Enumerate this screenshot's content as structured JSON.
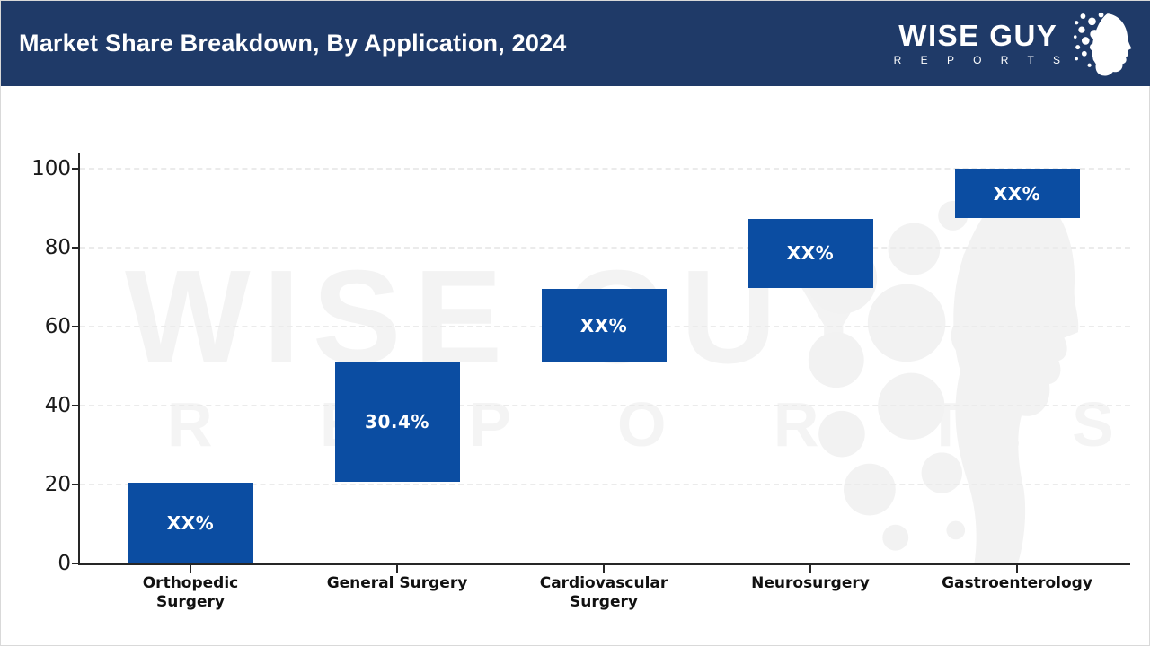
{
  "header": {
    "title": "Market Share Breakdown, By Application, 2024",
    "logo": {
      "line1": "WISE GUY",
      "line2": "R E P O R T S"
    }
  },
  "watermark": {
    "line1": "WISE GUY",
    "line2": "R E P O R T S"
  },
  "colors": {
    "header_bg": "#1f3a68",
    "bar": "#0b4da2",
    "axis": "#262626",
    "grid": "#ebebeb",
    "bar_label": "#ffffff"
  },
  "chart_data": {
    "type": "bar",
    "subtype": "waterfall",
    "title": "Market Share Breakdown, By Application, 2024",
    "xlabel": "",
    "ylabel": "",
    "categories": [
      "Orthopedic Surgery",
      "General Surgery",
      "Cardiovascular Surgery",
      "Neurosurgery",
      "Gastroenterology"
    ],
    "segments": [
      {
        "category": "Orthopedic Surgery",
        "start": 0,
        "end": 20.5,
        "label": "XX%"
      },
      {
        "category": "General Surgery",
        "start": 20.6,
        "end": 51.0,
        "label": "30.4%"
      },
      {
        "category": "Cardiovascular Surgery",
        "start": 51.0,
        "end": 69.5,
        "label": "XX%"
      },
      {
        "category": "Neurosurgery",
        "start": 69.8,
        "end": 87.3,
        "label": "XX%"
      },
      {
        "category": "Gastroenterology",
        "start": 87.5,
        "end": 100.0,
        "label": "XX%"
      }
    ],
    "y_ticks": [
      0,
      20,
      40,
      60,
      80,
      100
    ],
    "ylim": [
      0,
      104
    ],
    "grid": "horizontal-dashed",
    "legend": "none",
    "bar_color": "#0b4da2",
    "label_color": "#ffffff"
  }
}
